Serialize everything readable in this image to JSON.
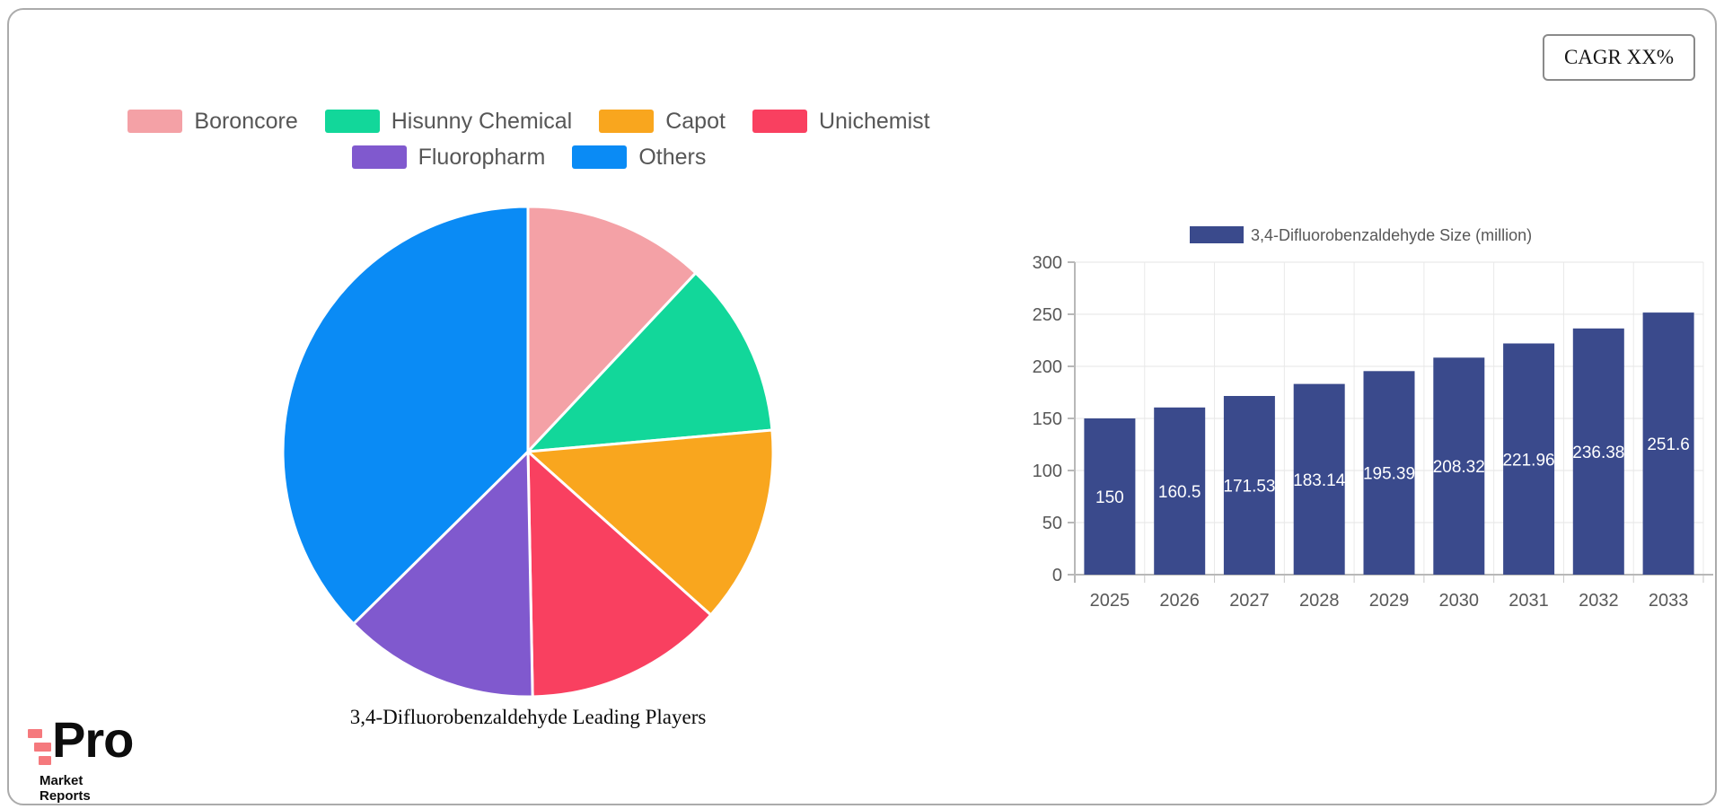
{
  "cagr": {
    "label": "CAGR XX%"
  },
  "pie": {
    "title": "3,4-Difluorobenzaldehyde Leading Players",
    "legend_rows": [
      [
        "Boroncore",
        "Hisunny Chemical",
        "Capot",
        "Unichemist"
      ],
      [
        "Fluoropharm",
        "Others"
      ]
    ]
  },
  "bar": {
    "legend": "3,4-Difluorobenzaldehyde Size (million)"
  },
  "logo": {
    "brand": "Pro",
    "subtitle": "Market Reports",
    "accent_color": "#F5797D"
  },
  "chart_data": [
    {
      "type": "pie",
      "title": "3,4-Difluorobenzaldehyde Leading Players",
      "labels": [
        "Boroncore",
        "Hisunny Chemical",
        "Capot",
        "Unichemist",
        "Fluoropharm",
        "Others"
      ],
      "values": [
        12,
        11.6,
        13,
        13.1,
        12.9,
        37.4
      ],
      "unit": "percent-share",
      "colors": [
        "#F4A1A6",
        "#12D79A",
        "#F9A61E",
        "#F94060",
        "#8059CE",
        "#0A8BF5"
      ],
      "start_angle_deg": 0,
      "direction": "clockwise",
      "slice_border_color": "#ffffff",
      "legend_position": "top"
    },
    {
      "type": "bar",
      "legend": "3,4-Difluorobenzaldehyde Size (million)",
      "categories": [
        "2025",
        "2026",
        "2027",
        "2028",
        "2029",
        "2030",
        "2031",
        "2032",
        "2033"
      ],
      "values": [
        150,
        160.5,
        171.53,
        183.14,
        195.39,
        208.32,
        221.96,
        236.38,
        251.6
      ],
      "bar_color": "#3A4A8C",
      "value_label_color": "#ffffff",
      "axis_label_color": "#585858",
      "ylim": [
        0,
        300
      ],
      "yticks": [
        0,
        50,
        100,
        150,
        200,
        250,
        300
      ],
      "grid": true,
      "legend_position": "top"
    }
  ]
}
